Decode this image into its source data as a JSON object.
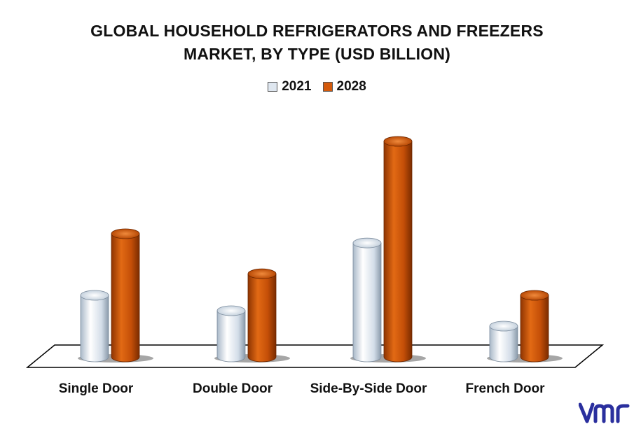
{
  "title_lines": [
    "GLOBAL HOUSEHOLD REFRIGERATORS AND FREEZERS",
    "MARKET, BY TYPE (USD BILLION)"
  ],
  "brand_text": "vmr",
  "colors": {
    "2021": "#dfe7f0",
    "2028": "#d45a0c"
  },
  "chart_data": {
    "type": "bar",
    "title": "GLOBAL HOUSEHOLD REFRIGERATORS AND FREEZERS MARKET, BY TYPE (USD BILLION)",
    "categories": [
      "Single Door",
      "Double Door",
      "Side-By-Side Door",
      "French Door"
    ],
    "series": [
      {
        "name": "2021",
        "values": [
          20,
          15,
          37,
          10
        ]
      },
      {
        "name": "2028",
        "values": [
          40,
          27,
          70,
          20
        ]
      }
    ],
    "ylim": [
      0,
      75
    ],
    "legend": "top-center",
    "grid": false
  }
}
